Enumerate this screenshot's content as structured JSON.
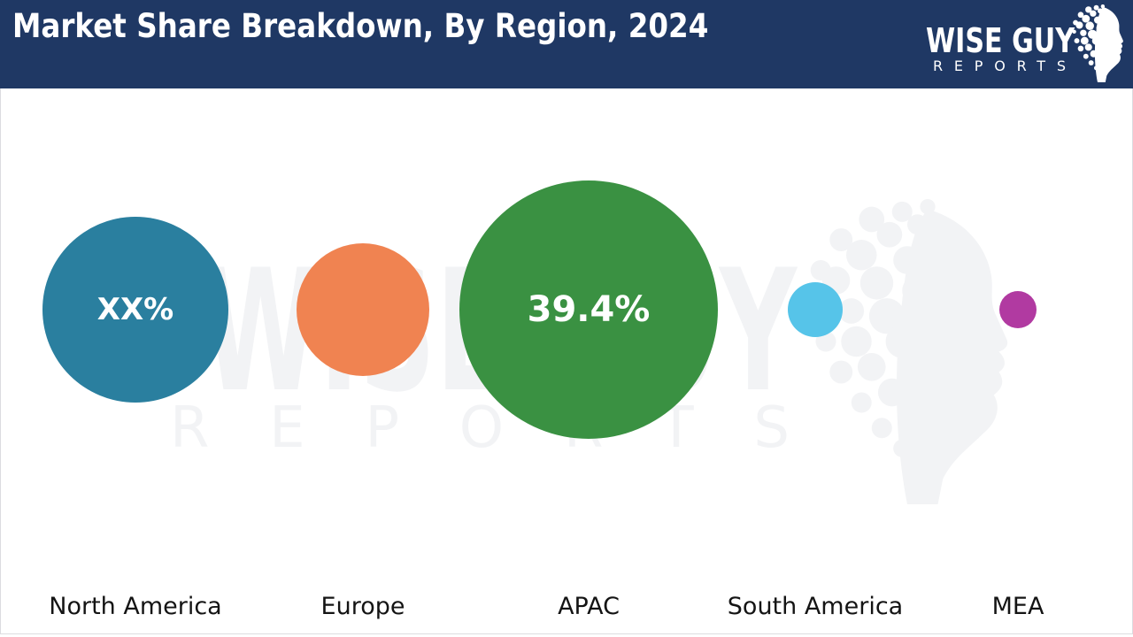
{
  "header": {
    "title": "Market Share Breakdown, By Region, 2024",
    "brand": {
      "name": "WISE GUY",
      "reports": "REPORTS"
    }
  },
  "chart_data": {
    "type": "bubble",
    "title": "Market Share Breakdown, By Region, 2024",
    "categories": [
      "North America",
      "Europe",
      "APAC",
      "South America",
      "MEA"
    ],
    "value_labels": [
      "XX%",
      "",
      "39.4%",
      "",
      ""
    ],
    "values_pct": [
      null,
      null,
      39.4,
      null,
      null
    ],
    "colors": [
      "#2A7F9F",
      "#F08351",
      "#3A9142",
      "#56C4E9",
      "#B13AA1"
    ],
    "bubble_radius_px": [
      105,
      75,
      146,
      31,
      21
    ],
    "background": "#ffffff",
    "grid": false,
    "legend_position": "bottom-category-labels",
    "header_color": "#1F3864",
    "watermark_color": "#F2F3F5"
  },
  "watermark": {
    "name": "WISE GUY",
    "reports": "REPORTS"
  }
}
